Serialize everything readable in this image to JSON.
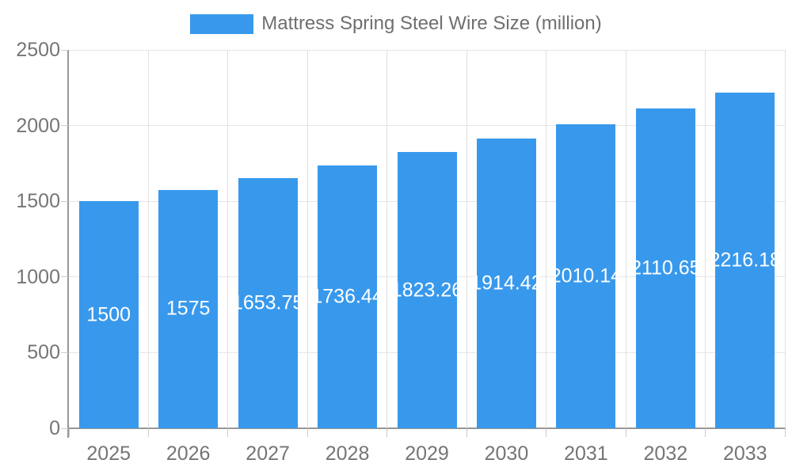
{
  "legend": {
    "label": "Mattress Spring Steel Wire Size (million)"
  },
  "chart_data": {
    "type": "bar",
    "title": "Mattress Spring Steel Wire Size (million)",
    "categories": [
      "2025",
      "2026",
      "2027",
      "2028",
      "2029",
      "2030",
      "2031",
      "2032",
      "2033"
    ],
    "values": [
      1500,
      1575,
      1653.75,
      1736.44,
      1823.26,
      1914.42,
      2010.14,
      2110.65,
      2216.18
    ],
    "value_labels": [
      "1500",
      "1575",
      "1653.75",
      "1736.44",
      "1823.26",
      "1914.42",
      "2010.14",
      "2110.65",
      "2216.18"
    ],
    "xlabel": "",
    "ylabel": "",
    "ylim": [
      0,
      2500
    ],
    "yticks": [
      0,
      500,
      1000,
      1500,
      2000,
      2500
    ],
    "grid": true,
    "legend_position": "top",
    "colors": {
      "bar": "#3899EC",
      "bar_label_text": "#ffffff",
      "axis_line": "#979797",
      "h_gridline": "#e6e6e6",
      "v_gridline": "#e0e0e0",
      "tick_mark": "#cccccc",
      "tick_text": "#757575",
      "legend_text": "#6f6f6f"
    }
  }
}
